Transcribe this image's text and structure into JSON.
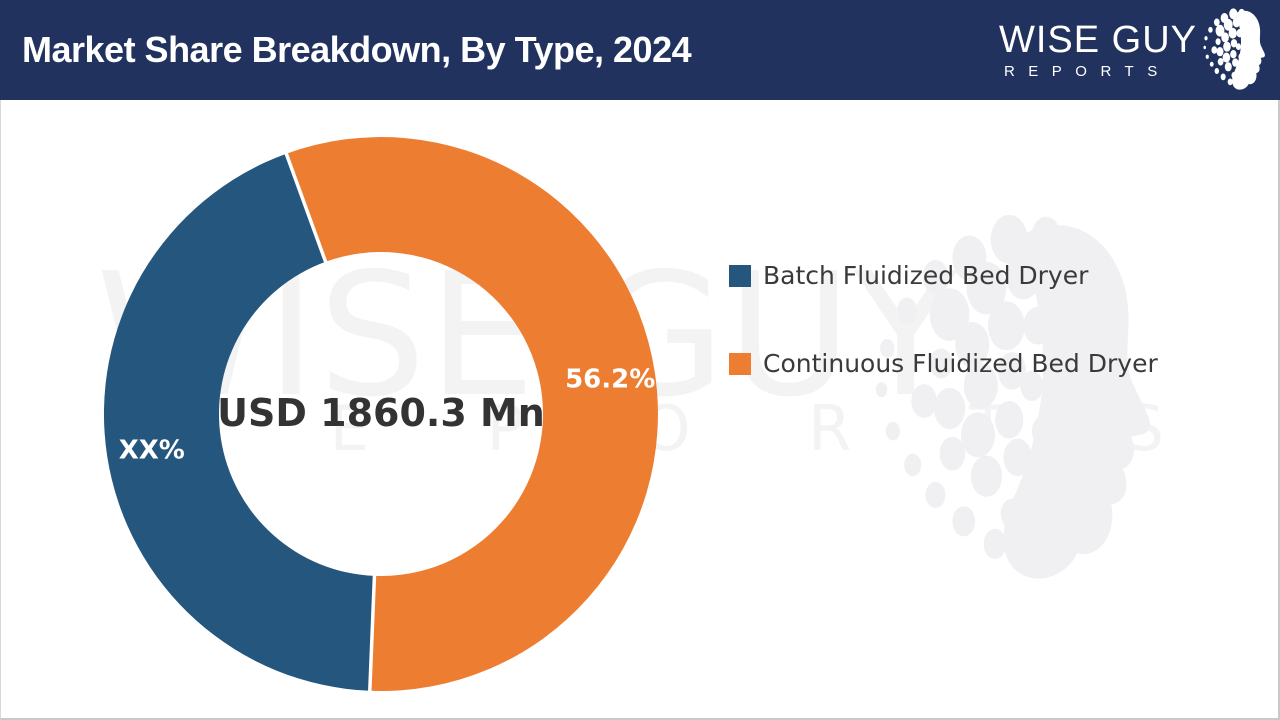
{
  "header": {
    "title": "Market Share Breakdown, By Type, 2024",
    "bg_color": "#21325F",
    "text_color": "#FFFFFF",
    "logo": {
      "name": "Wise Guy Reports logo",
      "line1": "WISE GUY",
      "line2": "REPORTS"
    }
  },
  "chart_data": {
    "type": "pie",
    "variant": "donut",
    "title": "Market Share Breakdown, By Type, 2024",
    "center_label": "USD 1860.3 Mn",
    "start_angle_deg": -20,
    "clockwise": true,
    "donut_hole_ratio": 0.59,
    "legend_position": "right",
    "segments": [
      {
        "name": "Continuous Fluidized Bed Dryer",
        "pct": 56.2,
        "label": "56.2%",
        "color": "#ED7D31"
      },
      {
        "name": "Batch Fluidized Bed Dryer",
        "pct": 43.8,
        "label": "XX%",
        "color": "#25567E"
      }
    ],
    "legend_order": [
      1,
      0
    ],
    "slice_border_color": "#FFFFFF"
  },
  "watermark": {
    "line1": "WISE GUY",
    "line2": "R E P O R T S"
  }
}
